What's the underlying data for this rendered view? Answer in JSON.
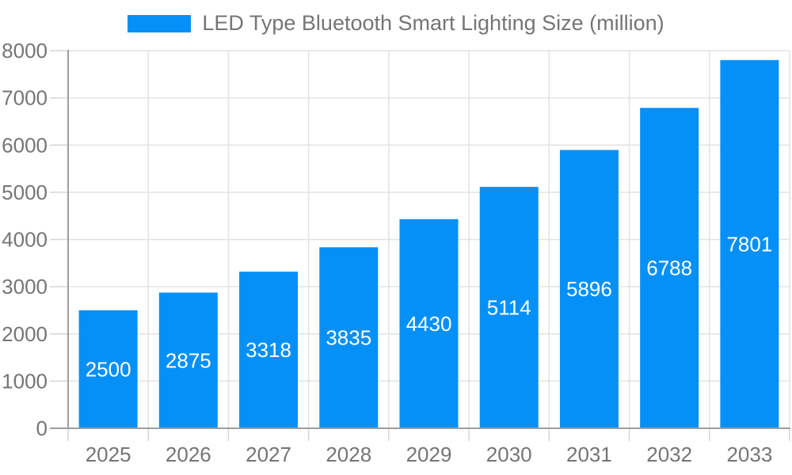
{
  "chart_data": {
    "type": "bar",
    "title": "",
    "legend_label": "LED Type Bluetooth Smart Lighting Size (million)",
    "legend_position": "top-center",
    "categories": [
      "2025",
      "2026",
      "2027",
      "2028",
      "2029",
      "2030",
      "2031",
      "2032",
      "2033"
    ],
    "series": [
      {
        "name": "LED Type Bluetooth Smart Lighting Size (million)",
        "values": [
          2500,
          2875,
          3318,
          3835,
          4430,
          5114,
          5896,
          6788,
          7801
        ]
      }
    ],
    "value_labels": [
      "2500",
      "2875",
      "3318",
      "3835",
      "4430",
      "5114",
      "5896",
      "6788",
      "7801"
    ],
    "xlabel": "",
    "ylabel": "",
    "ylim": [
      0,
      8000
    ],
    "y_ticks": [
      0,
      1000,
      2000,
      3000,
      4000,
      5000,
      6000,
      7000,
      8000
    ],
    "grid": true,
    "colors": {
      "bar": "#0590f8",
      "value_label": "#ffffff",
      "axis_text": "#757575",
      "gridline": "#e2e2e2",
      "tick": "#d6d6d6",
      "axis_line": "#9e9e9e",
      "background": "#ffffff"
    }
  }
}
